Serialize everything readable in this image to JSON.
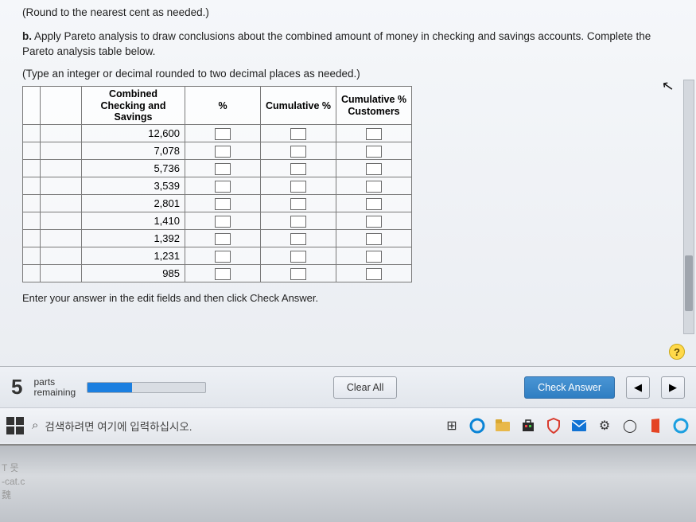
{
  "instructions": {
    "round_note": "(Round to the nearest cent as needed.)",
    "part_b_label": "b.",
    "part_b_text": "Apply Pareto analysis to draw conclusions about the combined amount of money in checking and savings accounts. Complete the Pareto analysis table below.",
    "type_hint": "(Type an integer or decimal rounded to two decimal places as needed.)",
    "enter_note": "Enter your answer in the edit fields and then click Check Answer."
  },
  "table": {
    "headers": {
      "col1": "Combined Checking and Savings",
      "col2": "%",
      "col3": "Cumulative %",
      "col4": "Cumulative % Customers"
    },
    "values": [
      "12,600",
      "7,078",
      "5,736",
      "3,539",
      "2,801",
      "1,410",
      "1,392",
      "1,231",
      "985"
    ]
  },
  "footer": {
    "parts_num": "5",
    "parts_label_1": "parts",
    "parts_label_2": "remaining",
    "progress_pct": 38,
    "clear_label": "Clear All",
    "check_label": "Check Answer",
    "prev": "◀",
    "next": "▶"
  },
  "help_badge": "?",
  "taskbar": {
    "search_placeholder": "검색하려면 여기에 입력하십시오.",
    "icons": {
      "taskview": "⊞",
      "edge_color": "#0a84d6",
      "explorer_color": "#e8b84a",
      "store_color": "#2a2a2a",
      "shield_color": "#d93c2f",
      "mail_color": "#1173d4",
      "settings": "⚙",
      "cortana": "◯",
      "office_color": "#e44424",
      "circle_color": "#1b9fe0"
    }
  },
  "colors": {
    "progress_fill": "#1b7fe0",
    "primary_btn": "#3a88c9"
  },
  "side_text": {
    "l1": "T 못",
    "l2": "-cat.c",
    "l3": "魏"
  }
}
